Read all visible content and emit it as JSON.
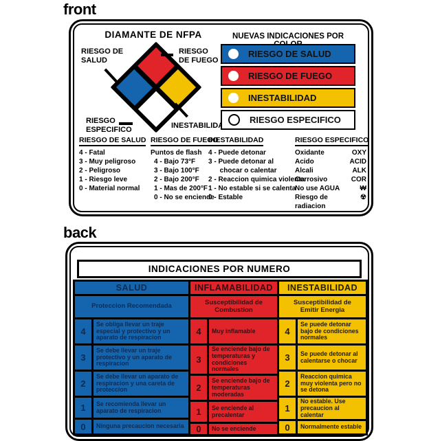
{
  "front_label": "front",
  "back_label": "back",
  "front": {
    "diamond_title": "DIAMANTE DE NFPA",
    "diamond_labels": {
      "health": "RIESGO DE\nSALUD",
      "fire": "RIESGO\nDE FUEGO",
      "specific": "RIESGO\nESPECIFICO",
      "instability": "INESTABILIDAD"
    },
    "diamond_colors": {
      "top": "#e1242a",
      "left": "#1565ae",
      "right": "#f3c100",
      "bottom": "#ffffff"
    },
    "legend": {
      "title": "NUEVAS INDICACIONES POR COLOR",
      "rows": [
        {
          "label": "RIESGO DE SALUD",
          "color": "#1565ae",
          "circle": "filled-white"
        },
        {
          "label": "RIESGO DE FUEGO",
          "color": "#e1242a",
          "circle": "filled-white"
        },
        {
          "label": "INESTABILIDAD",
          "color": "#f3c100",
          "circle": "filled-white"
        },
        {
          "label": "RIESGO ESPECIFICO",
          "color": "#ffffff",
          "circle": "black-outline"
        }
      ]
    },
    "ratings": [
      {
        "title": "RIESGO DE SALUD",
        "items": [
          "4 - Fatal",
          "3 - Muy peligroso",
          "2 - Peligroso",
          "1 - Riesgo leve",
          "0 - Material normal"
        ]
      },
      {
        "title": "RIESGO DE FUEGO",
        "items": [
          "Puntos de flash",
          "4 - Bajo 73°F",
          "3 - Bajo 100°F",
          "2 - Bajo 200°F",
          "1 - Mas de 200°F",
          "0 - No se enciende"
        ]
      },
      {
        "title": "INESTABILIDAD",
        "items": [
          "4 - Puede detonar",
          "3 - Puede detonar al",
          "      chocar o calentar",
          "2 - Reaccion quimica violenta",
          "1 - No estable si se calenta",
          "0 - Estable"
        ]
      },
      {
        "title": "RIESGO ESPECIFICO",
        "pairs": [
          {
            "name": "Oxidante",
            "code": "OXY"
          },
          {
            "name": "Acido",
            "code": "ACID"
          },
          {
            "name": "Alcali",
            "code": "ALK"
          },
          {
            "name": "Corrosivo",
            "code": "COR"
          },
          {
            "name": "No use AGUA",
            "code": "₩"
          },
          {
            "name": "Riesgo de radiacion",
            "code": "☢"
          }
        ]
      }
    ]
  },
  "back": {
    "title": "INDICACIONES POR NUMERO",
    "columns": [
      {
        "name": "SALUD",
        "subtitle": "Proteccion Recomendada",
        "color": "#1565ae",
        "rows": [
          {
            "num": "4",
            "text": "Se obliga llevar un traje especial y protectivo y un aparato de respiracion"
          },
          {
            "num": "3",
            "text": "Se debe llevar un traje protectivo y un aparato de respiracion"
          },
          {
            "num": "2",
            "text": "Se debe llevar un aparato de respiracion y una careta de proteccion"
          },
          {
            "num": "1",
            "text": "Se recomienda llevar un aparato de respiracion"
          },
          {
            "num": "0",
            "text": "Ninguna precaucion necesaria"
          }
        ]
      },
      {
        "name": "INFLAMABILIDAD",
        "subtitle": "Susceptibilidad de\nCombustion",
        "color": "#e1242a",
        "rows": [
          {
            "num": "4",
            "text": "Muy inflamable"
          },
          {
            "num": "3",
            "text": "Se enciende bajo de temperaturas y condiciones normales"
          },
          {
            "num": "2",
            "text": "Se enciende bajo de temperaturas moderadas"
          },
          {
            "num": "1",
            "text": "Se enciende al precalentar"
          },
          {
            "num": "0",
            "text": "No se enciende"
          }
        ]
      },
      {
        "name": "INESTABILIDAD",
        "subtitle": "Susceptibilidad de\nEmitir Energia",
        "color": "#f3c100",
        "rows": [
          {
            "num": "4",
            "text": "Se puede detonar bajo de condiciones normales"
          },
          {
            "num": "3",
            "text": "Se puede detonar al calentarse o chocar"
          },
          {
            "num": "2",
            "text": "Reaccion quimica muy violenta pero no se detona"
          },
          {
            "num": "1",
            "text": "No estable. Use precaucion al calentar"
          },
          {
            "num": "0",
            "text": "Normalmente estable"
          }
        ]
      }
    ]
  }
}
